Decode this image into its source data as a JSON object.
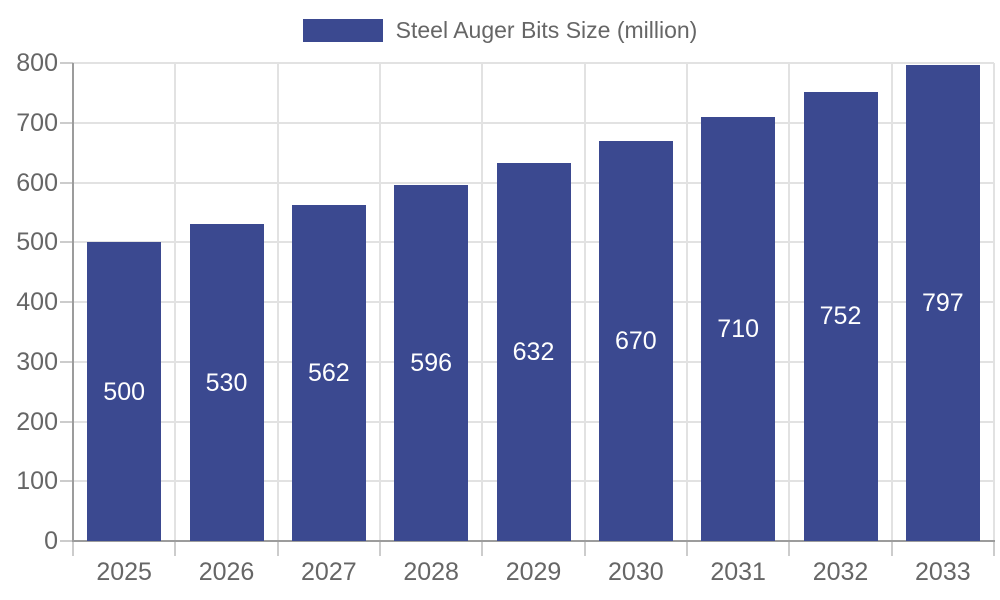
{
  "chart_data": {
    "type": "bar",
    "title": "",
    "series_name": "Steel Auger Bits Size (million)",
    "categories": [
      "2025",
      "2026",
      "2027",
      "2028",
      "2029",
      "2030",
      "2031",
      "2032",
      "2033"
    ],
    "values": [
      500,
      530,
      562,
      596,
      632,
      670,
      710,
      752,
      797
    ],
    "value_labels_shown": true,
    "value_label_position": "inside-center",
    "xlabel": "",
    "ylabel": "",
    "ylim": [
      0,
      800
    ],
    "ytick_step": 100,
    "ytick_labels": [
      "0",
      "100",
      "200",
      "300",
      "400",
      "500",
      "600",
      "700",
      "800"
    ],
    "grid": true,
    "legend_position": "top-center",
    "colors": {
      "bar": "#3B4990",
      "value_label": "#FFFFFF",
      "axis_text": "#666666",
      "legend_text": "#666666",
      "grid_line": "#E2E2E2",
      "tick_line": "#CCCCCC",
      "axis_line": "#9C9C9C",
      "background": "#FFFFFF"
    }
  }
}
